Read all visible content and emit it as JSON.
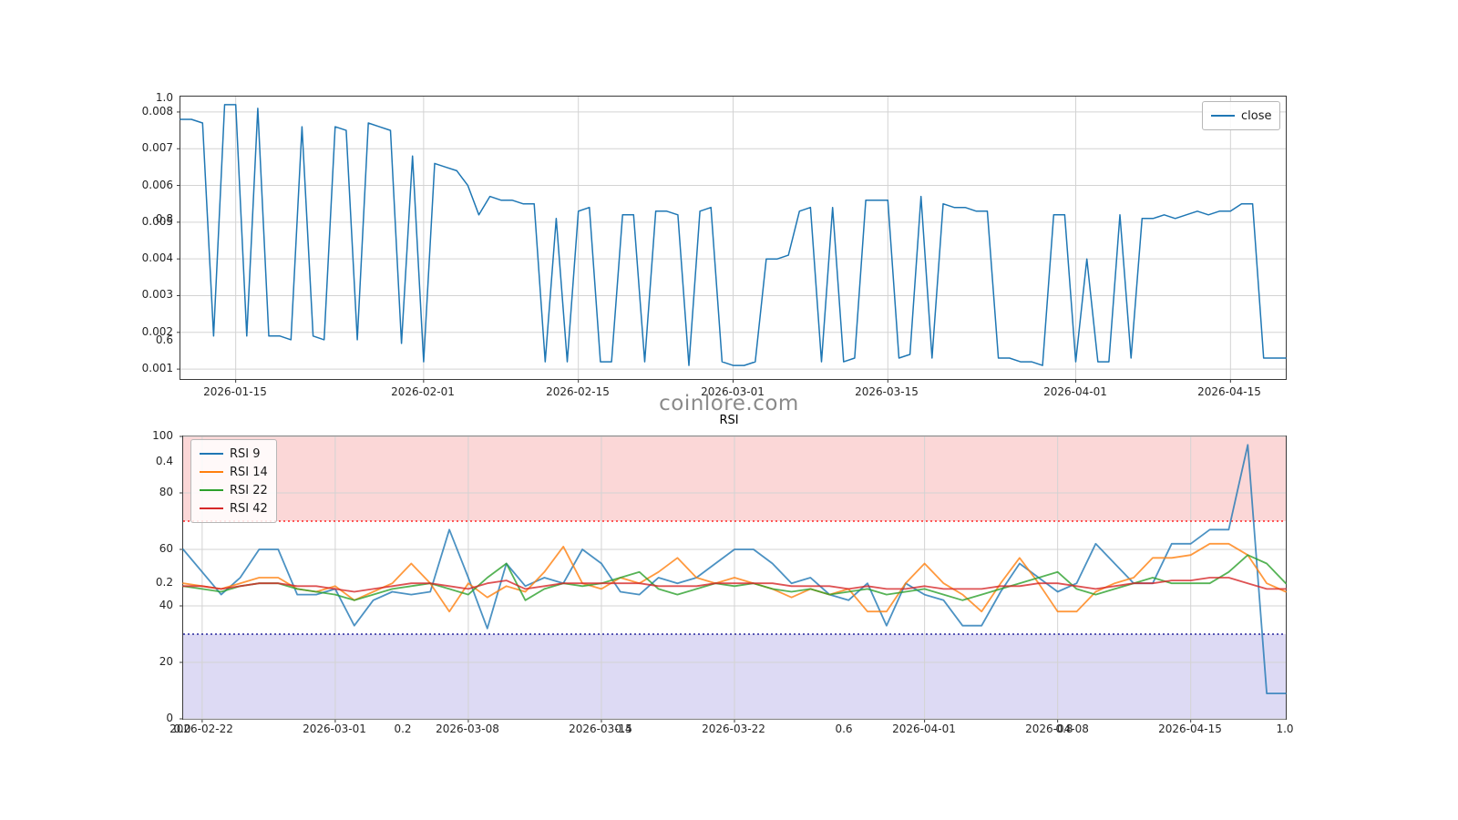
{
  "watermark": "coinlore.com",
  "colors": {
    "grid": "#d3d3d3",
    "close": "#1f77b4",
    "rsi9": "#1f77b4",
    "rsi14": "#ff7f0e",
    "rsi22": "#2ca02c",
    "rsi42": "#d62728",
    "overbought_band": "#fbd7d7",
    "oversold_band": "#dddaf4",
    "overbought_line": "red",
    "oversold_line": "darkblue"
  },
  "stray_axis_labels": {
    "y": [
      "1.0",
      "0.8",
      "0.6",
      "0.4",
      "0.2"
    ],
    "x": [
      "0.0",
      "0.2",
      "0.4",
      "0.6",
      "0.8",
      "1.0"
    ]
  },
  "chart_data": [
    {
      "type": "line",
      "title": "",
      "legend_position": "upper right",
      "grid": true,
      "x_start_date": "2026-01-10",
      "x_interval": "daily",
      "xticks": {
        "labels": [
          "2026-01-15",
          "2026-02-01",
          "2026-02-15",
          "2026-03-01",
          "2026-03-15",
          "2026-04-01",
          "2026-04-15"
        ],
        "indices": [
          5,
          22,
          36,
          50,
          64,
          81,
          95
        ]
      },
      "yticks": [
        0.001,
        0.002,
        0.003,
        0.004,
        0.005,
        0.006,
        0.007,
        0.008
      ],
      "ytick_labels": [
        "0.001",
        "0.002",
        "0.003",
        "0.004",
        "0.005",
        "0.006",
        "0.007",
        "0.008"
      ],
      "ylim": [
        0.00073,
        0.00842
      ],
      "series": [
        {
          "name": "close",
          "color": "#1f77b4",
          "width": 1.5,
          "opacity": 1,
          "values": [
            0.0078,
            0.0078,
            0.0077,
            0.0019,
            0.0082,
            0.0082,
            0.0019,
            0.0081,
            0.0019,
            0.0019,
            0.0018,
            0.0076,
            0.0019,
            0.0018,
            0.0076,
            0.0075,
            0.0018,
            0.0077,
            0.0076,
            0.0075,
            0.0017,
            0.0068,
            0.0012,
            0.0066,
            0.0065,
            0.0064,
            0.006,
            0.0052,
            0.0057,
            0.0056,
            0.0056,
            0.0055,
            0.0055,
            0.0012,
            0.0051,
            0.0012,
            0.0053,
            0.0054,
            0.0012,
            0.0012,
            0.0052,
            0.0052,
            0.0012,
            0.0053,
            0.0053,
            0.0052,
            0.0011,
            0.0053,
            0.0054,
            0.0012,
            0.0011,
            0.0011,
            0.0012,
            0.004,
            0.004,
            0.0041,
            0.0053,
            0.0054,
            0.0012,
            0.0054,
            0.0012,
            0.0013,
            0.0056,
            0.0056,
            0.0056,
            0.0013,
            0.0014,
            0.0057,
            0.0013,
            0.0055,
            0.0054,
            0.0054,
            0.0053,
            0.0053,
            0.0013,
            0.0013,
            0.0012,
            0.0012,
            0.0011,
            0.0052,
            0.0052,
            0.0012,
            0.004,
            0.0012,
            0.0012,
            0.0052,
            0.0013,
            0.0051,
            0.0051,
            0.0052,
            0.0051,
            0.0052,
            0.0053,
            0.0052,
            0.0053,
            0.0053,
            0.0055,
            0.0055,
            0.0013,
            0.0013,
            0.0013
          ]
        }
      ]
    },
    {
      "type": "line",
      "title": "RSI",
      "legend_position": "upper left",
      "grid": true,
      "x_start_date": "2026-02-21",
      "x_interval": "daily",
      "xticks": {
        "labels": [
          "2026-02-22",
          "2026-03-01",
          "2026-03-08",
          "2026-03-15",
          "2026-03-22",
          "2026-04-01",
          "2026-04-08",
          "2026-04-15"
        ],
        "indices": [
          1,
          8,
          15,
          22,
          29,
          39,
          46,
          53
        ]
      },
      "yticks": [
        0,
        20,
        40,
        60,
        80,
        100
      ],
      "ytick_labels": [
        "0",
        "20",
        "40",
        "60",
        "80",
        "100"
      ],
      "ylim": [
        0,
        100
      ],
      "bands": [
        {
          "from": 70,
          "to": 100,
          "color": "#fbd7d7",
          "meaning": "overbought"
        },
        {
          "from": 0,
          "to": 30,
          "color": "#dddaf4",
          "meaning": "oversold"
        }
      ],
      "hlines": [
        {
          "y": 70,
          "color": "red",
          "style": "dotted"
        },
        {
          "y": 30,
          "color": "darkblue",
          "style": "dotted"
        }
      ],
      "series": [
        {
          "name": "RSI 9",
          "color": "#1f77b4",
          "width": 1.8,
          "opacity": 0.8,
          "values": [
            60,
            52,
            44,
            50,
            60,
            60,
            44,
            44,
            46,
            33,
            42,
            45,
            44,
            45,
            67,
            50,
            32,
            55,
            47,
            50,
            48,
            60,
            55,
            45,
            44,
            50,
            48,
            50,
            55,
            60,
            60,
            55,
            48,
            50,
            44,
            42,
            48,
            33,
            48,
            44,
            42,
            33,
            33,
            45,
            55,
            50,
            45,
            48,
            62,
            55,
            48,
            48,
            62,
            62,
            67,
            67,
            97,
            9,
            9
          ]
        },
        {
          "name": "RSI 14",
          "color": "#ff7f0e",
          "width": 1.8,
          "opacity": 0.8,
          "values": [
            48,
            47,
            46,
            48,
            50,
            50,
            46,
            45,
            47,
            42,
            45,
            48,
            55,
            48,
            38,
            48,
            43,
            47,
            45,
            52,
            61,
            48,
            46,
            50,
            48,
            52,
            57,
            50,
            48,
            50,
            48,
            46,
            43,
            46,
            44,
            46,
            38,
            38,
            48,
            55,
            48,
            44,
            38,
            48,
            57,
            48,
            38,
            38,
            45,
            48,
            50,
            57,
            57,
            58,
            62,
            62,
            58,
            48,
            45
          ]
        },
        {
          "name": "RSI 22",
          "color": "#2ca02c",
          "width": 1.8,
          "opacity": 0.8,
          "values": [
            47,
            46,
            45,
            47,
            48,
            48,
            46,
            45,
            44,
            42,
            44,
            46,
            47,
            48,
            46,
            44,
            50,
            55,
            42,
            46,
            48,
            47,
            48,
            50,
            52,
            46,
            44,
            46,
            48,
            47,
            48,
            46,
            45,
            46,
            44,
            45,
            46,
            44,
            45,
            46,
            44,
            42,
            44,
            46,
            48,
            50,
            52,
            46,
            44,
            46,
            48,
            50,
            48,
            48,
            48,
            52,
            58,
            55,
            48
          ]
        },
        {
          "name": "RSI 42",
          "color": "#d62728",
          "width": 1.8,
          "opacity": 0.8,
          "values": [
            47,
            47,
            46,
            47,
            48,
            48,
            47,
            47,
            46,
            45,
            46,
            47,
            48,
            48,
            47,
            46,
            48,
            49,
            46,
            47,
            48,
            48,
            48,
            48,
            48,
            47,
            47,
            47,
            48,
            48,
            48,
            48,
            47,
            47,
            47,
            46,
            47,
            46,
            46,
            47,
            46,
            46,
            46,
            47,
            47,
            48,
            48,
            47,
            46,
            47,
            48,
            48,
            49,
            49,
            50,
            50,
            48,
            46,
            46
          ]
        }
      ]
    }
  ]
}
